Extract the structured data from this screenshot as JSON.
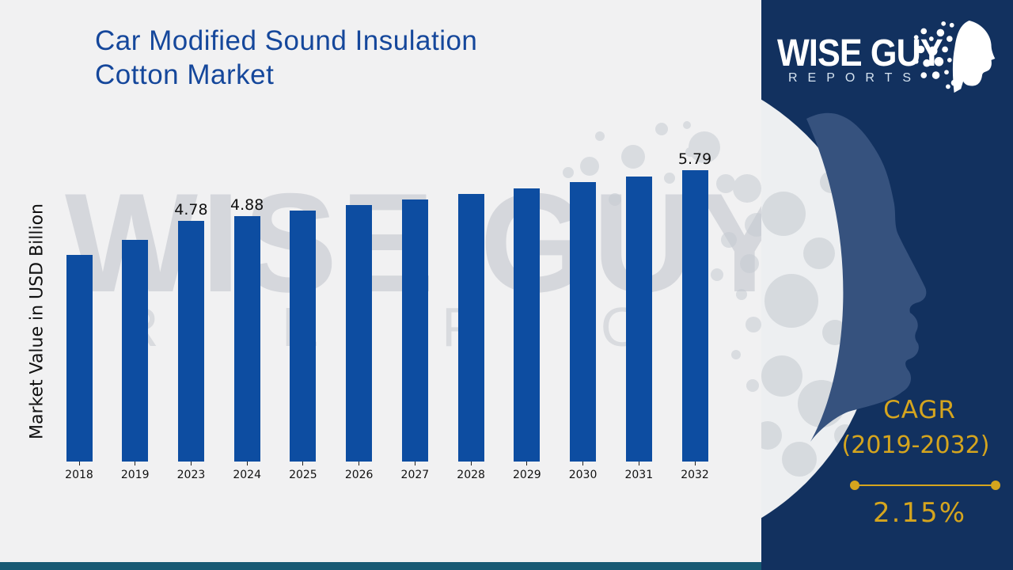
{
  "page": {
    "bg_color": "#f1f1f2"
  },
  "title": {
    "line1": "Car Modified Sound Insulation",
    "line2": "Cotton Market",
    "color": "#15479b"
  },
  "chart_data": {
    "type": "bar",
    "title": "Car Modified Sound Insulation Cotton Market",
    "ylabel": "Market Value in USD Billion",
    "xlabel": "",
    "categories": [
      "2018",
      "2019",
      "2023",
      "2024",
      "2025",
      "2026",
      "2027",
      "2028",
      "2029",
      "2030",
      "2031",
      "2032"
    ],
    "values": [
      4.1,
      4.4,
      4.78,
      4.88,
      4.98,
      5.09,
      5.2,
      5.31,
      5.43,
      5.55,
      5.66,
      5.79
    ],
    "point_labels": {
      "2023": "4.78",
      "2024": "4.88",
      "2032": "5.79"
    },
    "ylim": [
      0,
      7
    ],
    "grid": false,
    "bar_color": "#0d4da1",
    "tick_color": "#222222",
    "text_color": "#111111"
  },
  "watermark": {
    "line1": "WISE GUY",
    "line2": "R E P O R T S"
  },
  "brand_panel": {
    "bg_color": "#12315f",
    "logo_line1": "WISE GUY",
    "logo_line2": "REPORTS",
    "cagr_label": "CAGR",
    "cagr_range": "(2019-2032)",
    "cagr_value": "2.15%",
    "accent_color": "#d5a51e",
    "face_color": "#36527e"
  },
  "footer": {
    "strip_color": "#185a74"
  }
}
